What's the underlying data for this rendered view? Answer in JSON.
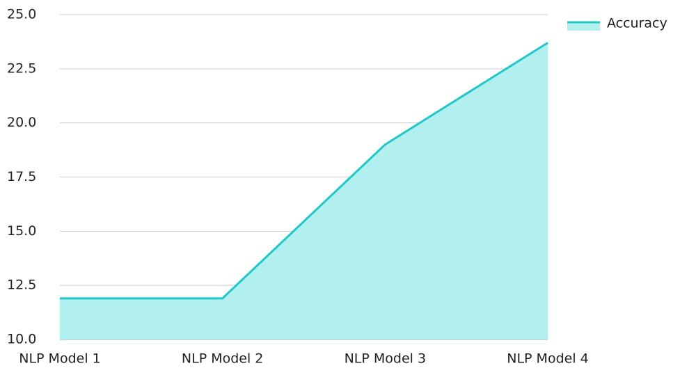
{
  "chart_data": {
    "type": "area",
    "categories": [
      "NLP Model 1",
      "NLP Model 2",
      "NLP Model 3",
      "NLP Model 4"
    ],
    "series": [
      {
        "name": "Accuracy",
        "color": "#1cc8c8",
        "fill": "#b2efef",
        "values": [
          11.9,
          11.9,
          19.0,
          23.7
        ]
      }
    ],
    "ylim": [
      10,
      25
    ],
    "yticks": [
      {
        "value": 10,
        "label": "10.0"
      },
      {
        "value": 12.5,
        "label": "12.5"
      },
      {
        "value": 15,
        "label": "15.0"
      },
      {
        "value": 17.5,
        "label": "17.5"
      },
      {
        "value": 20,
        "label": "20.0"
      },
      {
        "value": 22.5,
        "label": "22.5"
      },
      {
        "value": 25,
        "label": "25.0"
      }
    ],
    "grid": true,
    "legend": "top-right"
  }
}
